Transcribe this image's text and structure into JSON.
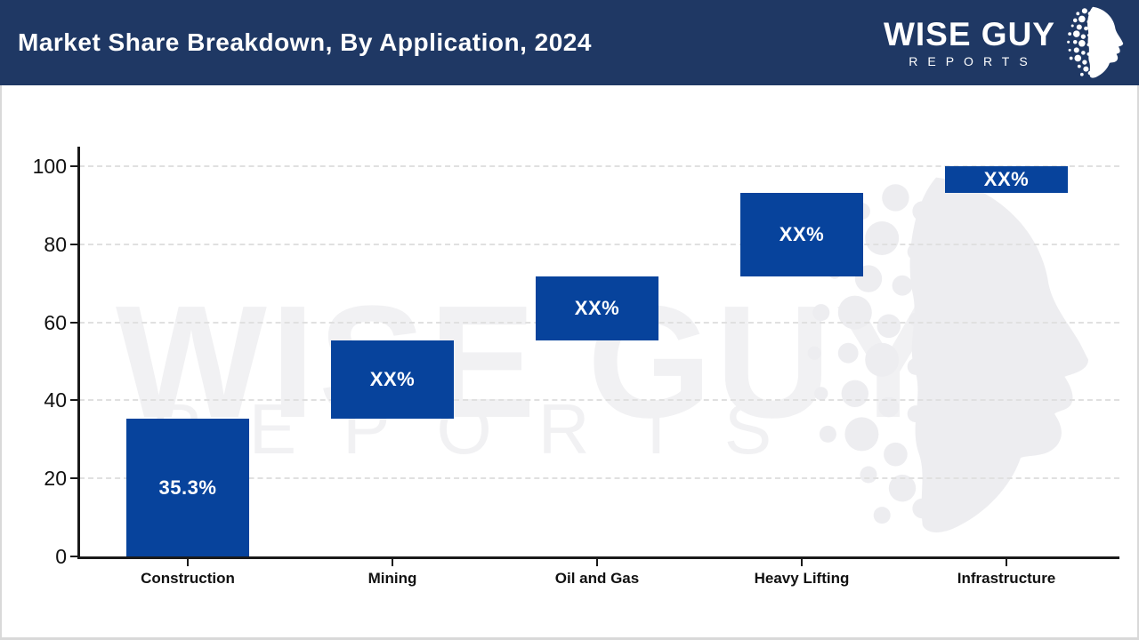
{
  "header": {
    "title": "Market Share Breakdown, By Application, 2024",
    "logo": {
      "line1": "WISE GUY",
      "line2": "REPORTS"
    },
    "bg_color": "#1f3864"
  },
  "watermark": {
    "line1": "WISE GUY",
    "line2": "REPORTS"
  },
  "chart_data": {
    "type": "bar",
    "subtype": "waterfall",
    "title": "Market Share Breakdown, By Application, 2024",
    "categories": [
      "Construction",
      "Mining",
      "Oil and Gas",
      "Heavy Lifting",
      "Infrastructure"
    ],
    "bars": [
      {
        "category": "Construction",
        "start": 0,
        "end": 35.3,
        "label": "35.3%"
      },
      {
        "category": "Mining",
        "start": 35.3,
        "end": 55.4,
        "label": "XX%"
      },
      {
        "category": "Oil and Gas",
        "start": 55.4,
        "end": 71.8,
        "label": "XX%"
      },
      {
        "category": "Heavy Lifting",
        "start": 71.8,
        "end": 93.2,
        "label": "XX%"
      },
      {
        "category": "Infrastructure",
        "start": 93.2,
        "end": 100,
        "label": "XX%"
      }
    ],
    "y_ticks": [
      0,
      20,
      40,
      60,
      80,
      100
    ],
    "ylim": [
      0,
      105
    ],
    "xlabel": "",
    "ylabel": "",
    "bar_color": "#07439c",
    "label_color": "#ffffff",
    "grid": true,
    "grid_style": "dashed",
    "legend": false
  }
}
